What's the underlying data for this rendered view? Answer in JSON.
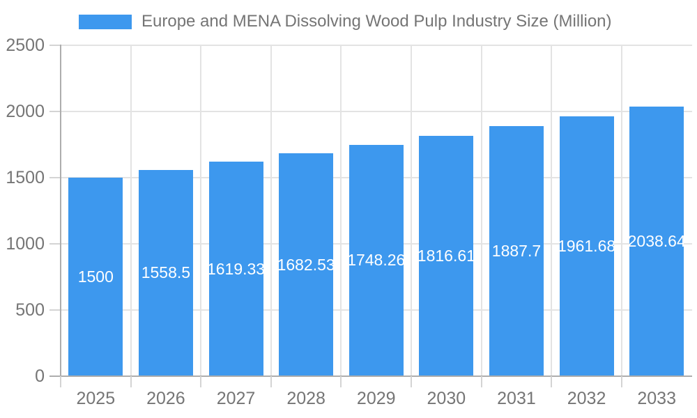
{
  "legend": {
    "label": "Europe and MENA Dissolving Wood Pulp Industry Size (Million)"
  },
  "chart_data": {
    "type": "bar",
    "title": "Europe and MENA Dissolving Wood Pulp Industry Size (Million)",
    "categories": [
      "2025",
      "2026",
      "2027",
      "2028",
      "2029",
      "2030",
      "2031",
      "2032",
      "2033"
    ],
    "values": [
      1500,
      1558.5,
      1619.33,
      1682.53,
      1748.26,
      1816.61,
      1887.7,
      1961.68,
      2038.64
    ],
    "bar_labels": [
      "1500",
      "1558.5",
      "1619.33",
      "1682.53",
      "1748.26",
      "1816.61",
      "1887.7",
      "1961.68",
      "2038.64"
    ],
    "xlabel": "",
    "ylabel": "",
    "ylim": [
      0,
      2500
    ],
    "y_ticks": [
      0,
      500,
      1000,
      1500,
      2000,
      2500
    ],
    "grid": true,
    "legend_position": "top",
    "colors": {
      "bar": "#3D98EE",
      "axis_text": "#757575",
      "bar_label_text": "#ffffff",
      "gridline": "#e3e3e3",
      "axis_line": "#adadad",
      "background": "#ffffff"
    }
  }
}
